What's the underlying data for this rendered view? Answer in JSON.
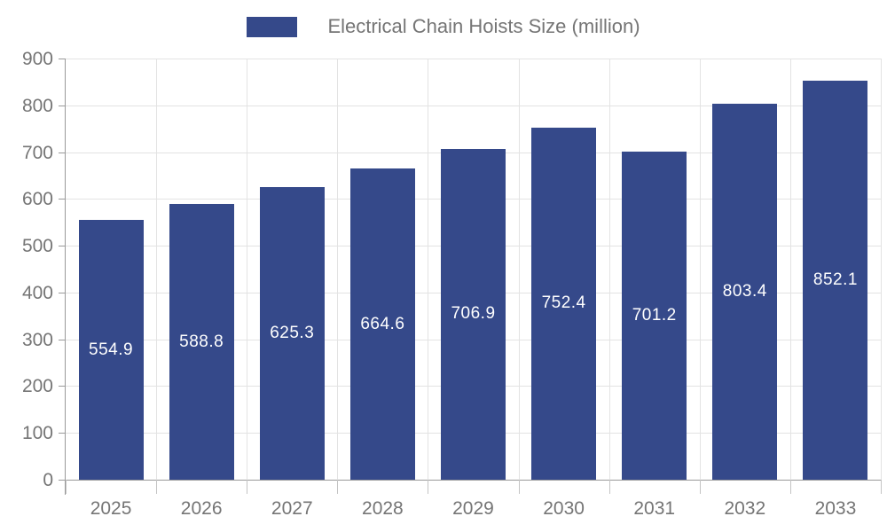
{
  "chart_data": {
    "type": "bar",
    "title": "",
    "legend_label": "Electrical Chain Hoists Size (million)",
    "categories": [
      "2025",
      "2026",
      "2027",
      "2028",
      "2029",
      "2030",
      "2031",
      "2032",
      "2033"
    ],
    "values": [
      554.9,
      588.8,
      625.3,
      664.6,
      706.9,
      752.4,
      701.2,
      803.4,
      852.1
    ],
    "value_decimals": 1,
    "xlabel": "",
    "ylabel": "",
    "ylim": [
      0,
      900
    ],
    "ytick_step": 100,
    "ytick_labels": [
      "0",
      "100",
      "200",
      "300",
      "400",
      "500",
      "600",
      "700",
      "800",
      "900"
    ],
    "grid": true,
    "legend_position": "top-center",
    "value_label_position": "inside-center",
    "colors": {
      "bar": "#35498A",
      "grid": "#e3e3e3",
      "axis": "#999999",
      "boundary_tick": "#c4c4c4",
      "axis_text": "#757575",
      "legend_text": "#757575",
      "value_text": "#ffffff",
      "background": "#ffffff"
    }
  }
}
